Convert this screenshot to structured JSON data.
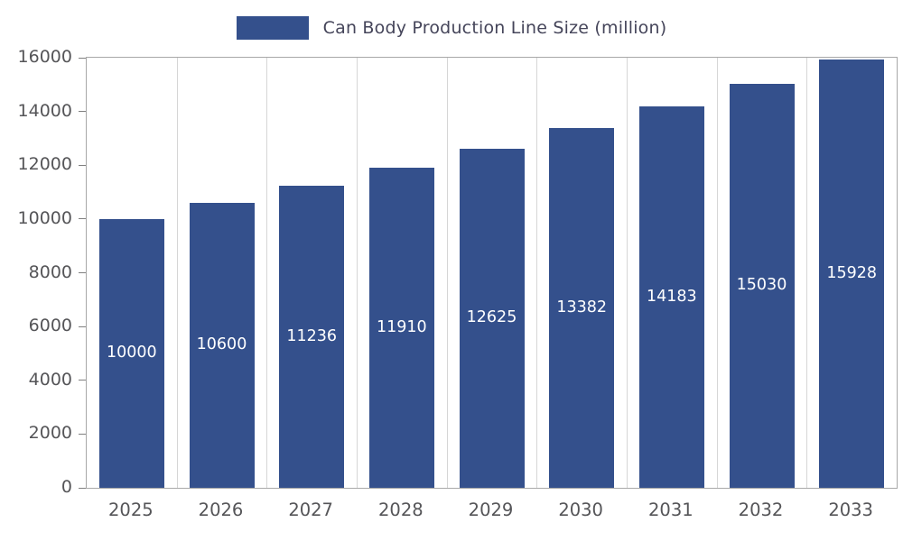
{
  "chart_data": {
    "type": "bar",
    "title": "Can Body Production Line Size (million)",
    "categories": [
      "2025",
      "2026",
      "2027",
      "2028",
      "2029",
      "2030",
      "2031",
      "2032",
      "2033"
    ],
    "values": [
      10000,
      10600,
      11236,
      11910,
      12625,
      13382,
      14183,
      15030,
      15928
    ],
    "xlabel": "",
    "ylabel": "",
    "ylim": [
      0,
      16000
    ],
    "ytick_step": 2000,
    "grid": "vertical",
    "legend_position": "top-center",
    "bar_color": "#34508c",
    "bar_label_color": "#ffffff",
    "axis_text_color": "#555558",
    "title_color": "#45455a"
  }
}
